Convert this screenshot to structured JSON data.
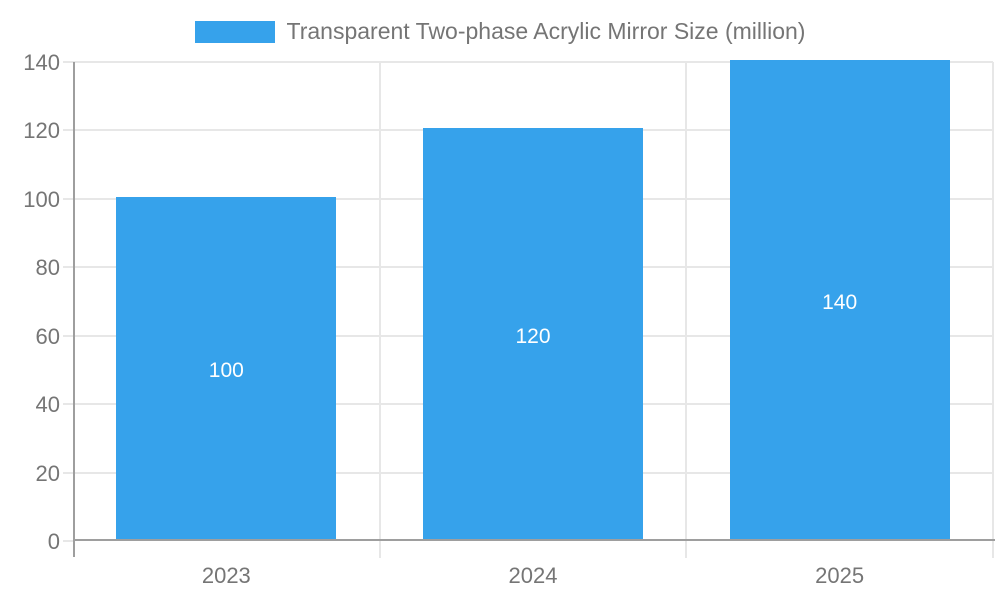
{
  "colors": {
    "bar": "#36A2EB",
    "text": "#757575",
    "grid": "#E7E7E7",
    "axis": "#9E9E9E",
    "value_label": "#FFFFFF",
    "background": "#FFFFFF"
  },
  "legend": {
    "position": "top",
    "swatch": "blue-rectangle",
    "label": "Transparent Two-phase Acrylic Mirror Size (million)"
  },
  "chart_data": {
    "type": "bar",
    "title": "Transparent Two-phase Acrylic Mirror Size (million)",
    "categories": [
      "2023",
      "2024",
      "2025"
    ],
    "values": [
      100,
      120,
      140
    ],
    "series": [
      {
        "name": "Transparent Two-phase Acrylic Mirror Size (million)",
        "values": [
          100,
          120,
          140
        ]
      }
    ],
    "data_labels": [
      "100",
      "120",
      "140"
    ],
    "xlabel": "",
    "ylabel": "",
    "ylim": [
      0,
      140
    ],
    "y_ticks": [
      "0",
      "20",
      "40",
      "60",
      "80",
      "100",
      "120",
      "140"
    ],
    "grid": true,
    "legend_position": "top"
  }
}
